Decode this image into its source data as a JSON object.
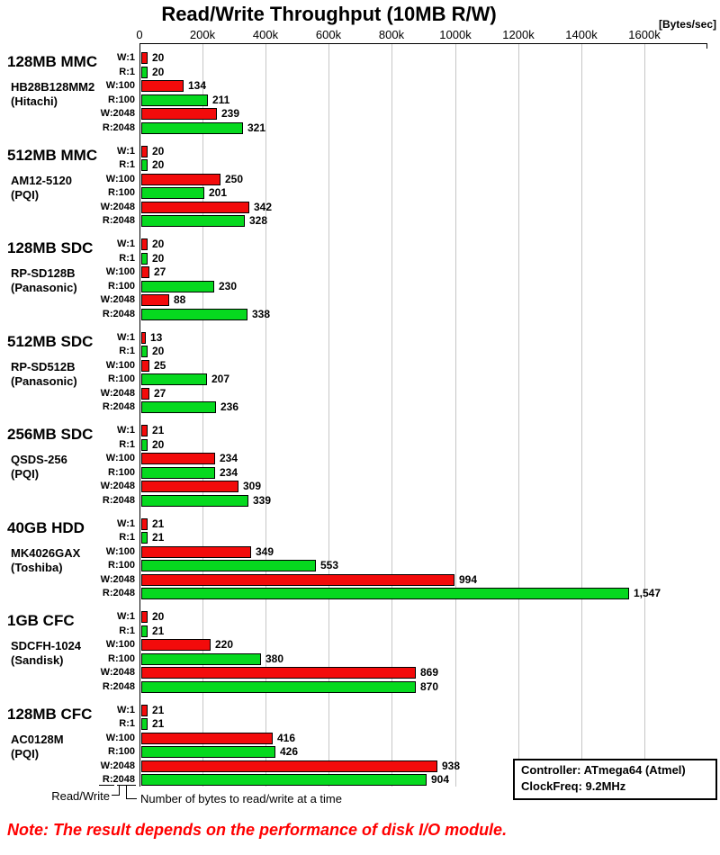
{
  "title": "Read/Write Throughput (10MB R/W)",
  "axis_unit_label": "[Bytes/sec]",
  "note": "Note: The result depends on the performance of disk I/O module.",
  "info_box": {
    "line1": "Controller: ATmega64 (Atmel)",
    "line2": "ClockFreq: 9.2MHz"
  },
  "legend": {
    "read_write_label": "Read/Write",
    "bytes_label": "Number of bytes to read/write at a time"
  },
  "colors": {
    "write_bar": "#f30b0b",
    "read_bar": "#06d91f",
    "bar_outline": "#000000",
    "grid": "#c6c6c6",
    "note_text": "#ff0000"
  },
  "chart_data": {
    "type": "bar",
    "orientation": "horizontal",
    "title": "Read/Write Throughput (10MB R/W)",
    "xlabel": "[Bytes/sec]",
    "x_axis": {
      "ticks": [
        "0",
        "200k",
        "400k",
        "600k",
        "800k",
        "1000k",
        "1200k",
        "1400k",
        "1600k"
      ],
      "tick_values_bytes_per_sec": [
        0,
        200000,
        400000,
        600000,
        800000,
        1000000,
        1200000,
        1400000,
        1600000
      ],
      "grid": true
    },
    "row_labels": [
      "W:1",
      "R:1",
      "W:100",
      "R:100",
      "W:2048",
      "R:2048"
    ],
    "row_kinds": [
      "write",
      "read",
      "write",
      "read",
      "write",
      "read"
    ],
    "values_unit": "kBytes/sec",
    "groups": [
      {
        "label": "128MB MMC",
        "model": "HB28B128MM2",
        "maker": "(Hitachi)",
        "values": [
          20,
          20,
          134,
          211,
          239,
          321
        ]
      },
      {
        "label": "512MB MMC",
        "model": "AM12-5120",
        "maker": "(PQI)",
        "values": [
          20,
          20,
          250,
          201,
          342,
          328
        ]
      },
      {
        "label": "128MB SDC",
        "model": "RP-SD128B",
        "maker": "(Panasonic)",
        "values": [
          20,
          20,
          27,
          230,
          88,
          338
        ]
      },
      {
        "label": "512MB SDC",
        "model": "RP-SD512B",
        "maker": "(Panasonic)",
        "values": [
          13,
          20,
          25,
          207,
          27,
          236
        ]
      },
      {
        "label": "256MB SDC",
        "model": "QSDS-256",
        "maker": "(PQI)",
        "values": [
          21,
          20,
          234,
          234,
          309,
          339
        ]
      },
      {
        "label": "40GB HDD",
        "model": "MK4026GAX",
        "maker": "(Toshiba)",
        "values": [
          21,
          21,
          349,
          553,
          994,
          1547
        ]
      },
      {
        "label": "1GB CFC",
        "model": "SDCFH-1024",
        "maker": "(Sandisk)",
        "values": [
          20,
          21,
          220,
          380,
          869,
          870
        ]
      },
      {
        "label": "128MB CFC",
        "model": "AC0128M",
        "maker": "(PQI)",
        "values": [
          21,
          21,
          416,
          426,
          938,
          904
        ]
      }
    ]
  }
}
